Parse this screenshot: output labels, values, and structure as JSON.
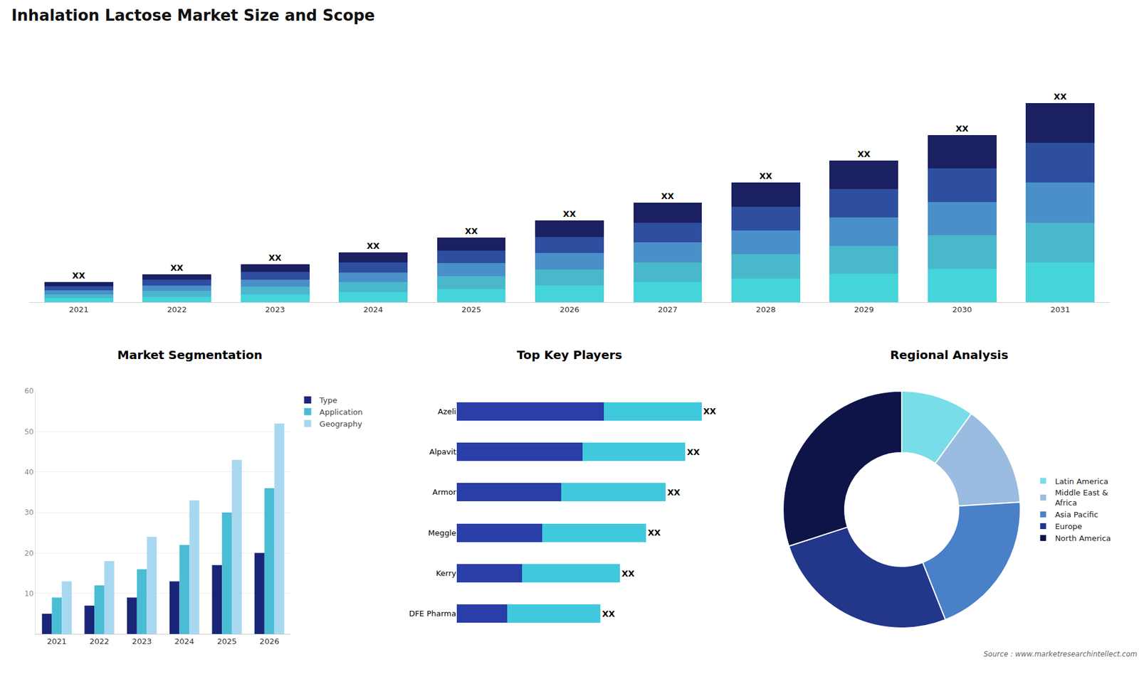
{
  "chart_data": [
    {
      "type": "bar",
      "title": "Inhalation Lactose Market Size and Scope",
      "categories": [
        "2021",
        "2022",
        "2023",
        "2024",
        "2025",
        "2026",
        "2027",
        "2028",
        "2029",
        "2030",
        "2031"
      ],
      "stacked": true,
      "series": [
        {
          "color": "#45D4DA",
          "values": [
            0.4,
            0.56,
            0.76,
            1,
            1.3,
            1.64,
            2,
            2.4,
            2.84,
            3.36,
            4
          ]
        },
        {
          "color": "#4AB8CC",
          "values": [
            0.4,
            0.56,
            0.76,
            1,
            1.3,
            1.64,
            2,
            2.4,
            2.84,
            3.36,
            4
          ]
        },
        {
          "color": "#4A90C8",
          "values": [
            0.4,
            0.56,
            0.76,
            1,
            1.3,
            1.64,
            2,
            2.4,
            2.84,
            3.36,
            4
          ]
        },
        {
          "color": "#2E4EA0",
          "values": [
            0.4,
            0.56,
            0.76,
            1,
            1.3,
            1.64,
            2,
            2.4,
            2.84,
            3.36,
            4
          ]
        },
        {
          "color": "#1A2060",
          "values": [
            0.4,
            0.56,
            0.76,
            1,
            1.3,
            1.64,
            2,
            2.4,
            2.84,
            3.36,
            4
          ],
          "value_labels": [
            "XX",
            "XX",
            "XX",
            "XX",
            "XX",
            "XX",
            "XX",
            "XX",
            "XX",
            "XX",
            "XX"
          ]
        }
      ],
      "data_labels": true,
      "ylim": [
        0,
        24.4
      ],
      "tick_labels": "x",
      "grid": false
    },
    {
      "type": "bar",
      "title": "Market Segmentation",
      "categories": [
        "2021",
        "2022",
        "2023",
        "2024",
        "2025",
        "2026"
      ],
      "series": [
        {
          "name": "Type",
          "color": "#1A2578",
          "values": [
            5,
            7,
            9,
            13,
            17,
            20
          ]
        },
        {
          "name": "Application",
          "color": "#4ABCD4",
          "values": [
            9,
            12,
            16,
            22,
            30,
            36
          ]
        },
        {
          "name": "Geography",
          "color": "#A8D8F0",
          "values": [
            13,
            18,
            24,
            33,
            43,
            52
          ]
        }
      ],
      "ylim": [
        0,
        60
      ],
      "yticks": [
        10,
        20,
        30,
        40,
        50,
        60
      ],
      "grid": true,
      "legend": "upper right"
    },
    {
      "type": "bar",
      "title": "Top Key Players",
      "orientation": "horizontal",
      "stacked": true,
      "categories": [
        "Azeli",
        "Alpavit",
        "Armor",
        "Meggle",
        "Kerry",
        "DFE Pharma"
      ],
      "series": [
        {
          "color": "#2A3EA8",
          "values": [
            0.45,
            0.385,
            0.32,
            0.261,
            0.2,
            0.154
          ]
        },
        {
          "color": "#40C8DC",
          "values": [
            0.3,
            0.315,
            0.32,
            0.319,
            0.3,
            0.286
          ],
          "value_labels": [
            "XX",
            "XX",
            "XX",
            "XX",
            "XX",
            "XX"
          ]
        }
      ],
      "data_labels": true,
      "xlim": [
        0,
        0.8
      ],
      "tick_labels": "y",
      "grid": false
    },
    {
      "type": "donut",
      "title": "Regional Analysis",
      "categories": [
        "Latin America",
        "Middle East &\nAfrica",
        "Asia Pacific",
        "Europe",
        "North America"
      ],
      "values": [
        10,
        14,
        20,
        26,
        30
      ],
      "colors": [
        "#78DDE8",
        "#9ABCE0",
        "#4A80C8",
        "#22368A",
        "#0E1448"
      ],
      "legend": "right",
      "annotations": [
        "Source : www.marketresearchintellect.com"
      ]
    }
  ]
}
